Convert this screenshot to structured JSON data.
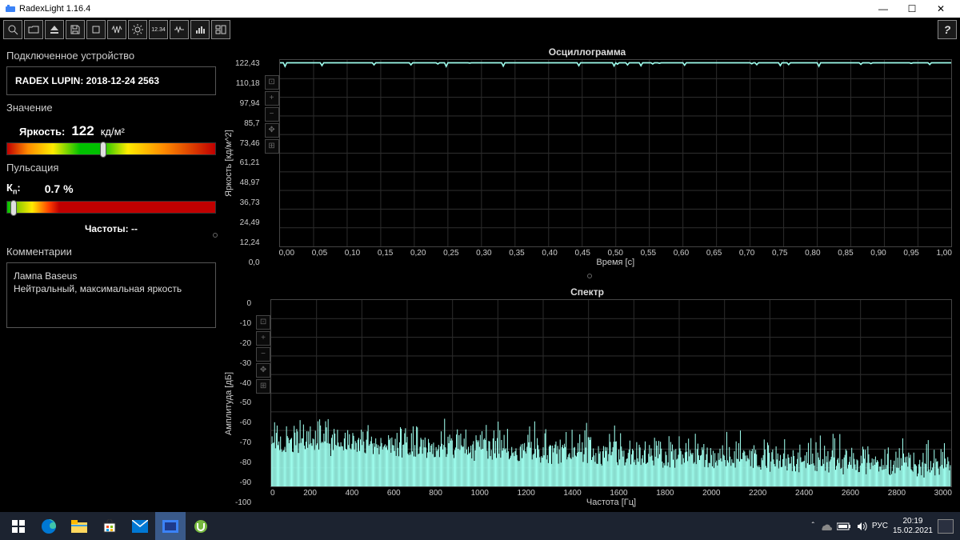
{
  "window": {
    "title": "RadexLight 1.16.4",
    "minimize": "—",
    "maximize": "☐",
    "close": "✕"
  },
  "toolbar": {
    "help": "?"
  },
  "sidebar": {
    "device_section": "Подключенное устройство",
    "device_name": "RADEX LUPIN: 2018-12-24 2563",
    "value_section": "Значение",
    "brightness_label": "Яркость:",
    "brightness_value": "122",
    "brightness_unit": "кд/м²",
    "brightness_gauge": {
      "gradient": "linear-gradient(to right,#c00000 0%,#ff8c00 10%,#ffeb00 22%,#00c000 35%,#00c000 45%,#ffeb00 58%,#ff8c00 75%,#c00000 100%)",
      "pointer_pct": 46
    },
    "pulsation_section": "Пульсация",
    "kn_label": "Кп:",
    "kn_value": "0.7 %",
    "kn_gauge": {
      "gradient": "linear-gradient(to right,#00c000 0%,#a0d000 6%,#ffeb00 12%,#ff4000 20%,#c00000 25%,#c00000 100%)",
      "pointer_pct": 3
    },
    "freq_label": "Частоты: --",
    "comments_section": "Комментарии",
    "comment_line1": "Лампа Baseus",
    "comment_line2": "Нейтральный, максимальная яркость"
  },
  "chart_osc": {
    "title": "Осциллограмма",
    "y_label": "Яркость [кд/м^2]",
    "x_label": "Время [с]",
    "y_ticks": [
      "122,43",
      "110,18",
      "97,94",
      "85,7",
      "73,46",
      "61,21",
      "48,97",
      "36,73",
      "24,49",
      "12,24",
      "0,0"
    ],
    "x_ticks": [
      "0,00",
      "0,05",
      "0,10",
      "0,15",
      "0,20",
      "0,25",
      "0,30",
      "0,35",
      "0,40",
      "0,45",
      "0,50",
      "0,55",
      "0,60",
      "0,65",
      "0,70",
      "0,75",
      "0,80",
      "0,85",
      "0,90",
      "0,95",
      "1,00"
    ],
    "trace_color": "#9dfcec",
    "grid_color": "#2a2a2a"
  },
  "chart_spec": {
    "title": "Спектр",
    "y_label": "Амплитуда [дБ]",
    "x_label": "Частота [Гц]",
    "y_ticks": [
      "0",
      "-10",
      "-20",
      "-30",
      "-40",
      "-50",
      "-60",
      "-70",
      "-80",
      "-90",
      "-100"
    ],
    "x_ticks": [
      "0",
      "200",
      "400",
      "600",
      "800",
      "1000",
      "1200",
      "1400",
      "1600",
      "1800",
      "2000",
      "2200",
      "2400",
      "2600",
      "2800",
      "3000"
    ],
    "trace_color": "#9dfcec",
    "grid_color": "#2a2a2a",
    "baseline_db": -90,
    "peak_db_start": -75,
    "peak_db_end": -88
  },
  "taskbar": {
    "lang": "РУС",
    "time": "20:19",
    "date": "15.02.2021"
  }
}
